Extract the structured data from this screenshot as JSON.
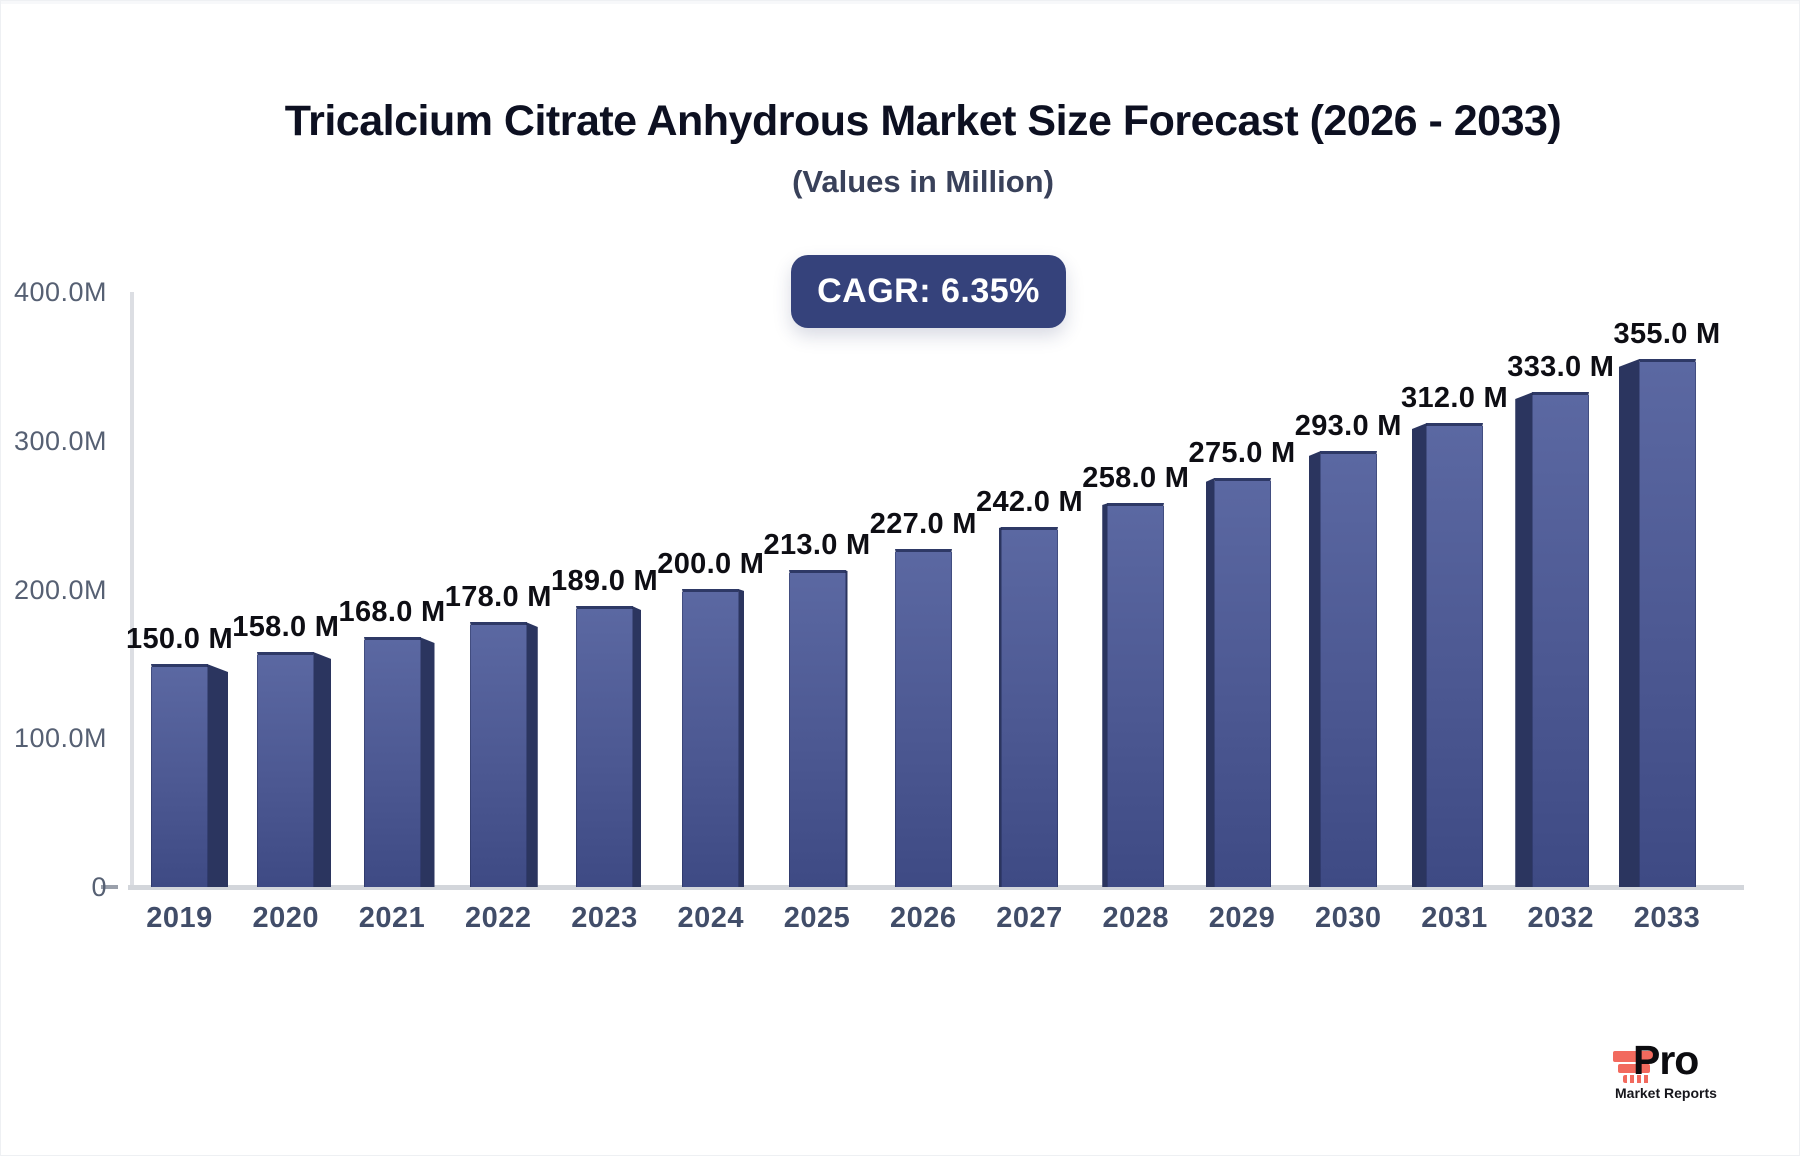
{
  "header": {
    "title": "Tricalcium Citrate Anhydrous Market Size Forecast (2026 - 2033)",
    "subtitle": "(Values in Million)"
  },
  "badge": {
    "label": "CAGR: 6.35%",
    "bg_color": "#35427b",
    "text_color": "#ffffff"
  },
  "chart_data": {
    "type": "bar",
    "title": "Tricalcium Citrate Anhydrous Market Size Forecast (2026 - 2033)",
    "subtitle": "(Values in Million)",
    "unit": "Million",
    "cagr": "6.35%",
    "categories": [
      "2019",
      "2020",
      "2021",
      "2022",
      "2023",
      "2024",
      "2025",
      "2026",
      "2027",
      "2028",
      "2029",
      "2030",
      "2031",
      "2032",
      "2033"
    ],
    "values": [
      150,
      158,
      168,
      178,
      189,
      200,
      213,
      227,
      242,
      258,
      275,
      293,
      312,
      333,
      355
    ],
    "value_labels": [
      "150.0 M",
      "158.0 M",
      "168.0 M",
      "178.0 M",
      "189.0 M",
      "200.0 M",
      "213.0 M",
      "227.0 M",
      "242.0 M",
      "258.0 M",
      "275.0 M",
      "293.0 M",
      "312.0 M",
      "333.0 M",
      "355.0 M"
    ],
    "ytick_labels": [
      "400.0M",
      "300.0M",
      "200.0M",
      "100.0M",
      "0"
    ],
    "ytick_values": [
      400,
      300,
      200,
      100,
      0
    ],
    "ylim": [
      0,
      400
    ],
    "xlabel": "",
    "ylabel": "",
    "grid": false,
    "legend": false,
    "style_3d": true,
    "colors": {
      "bar_front_top": "#5b68a2",
      "bar_front_bottom": "#3e4a84",
      "bar_side": "#2b355f",
      "axis": "#d6d8dd",
      "ytick_text": "#566073",
      "xtick_text": "#414d69",
      "value_label_text": "#0e0e14"
    }
  },
  "logo": {
    "name": "Pro",
    "caption": "Market Reports",
    "accent_color": "#f26a5e"
  }
}
